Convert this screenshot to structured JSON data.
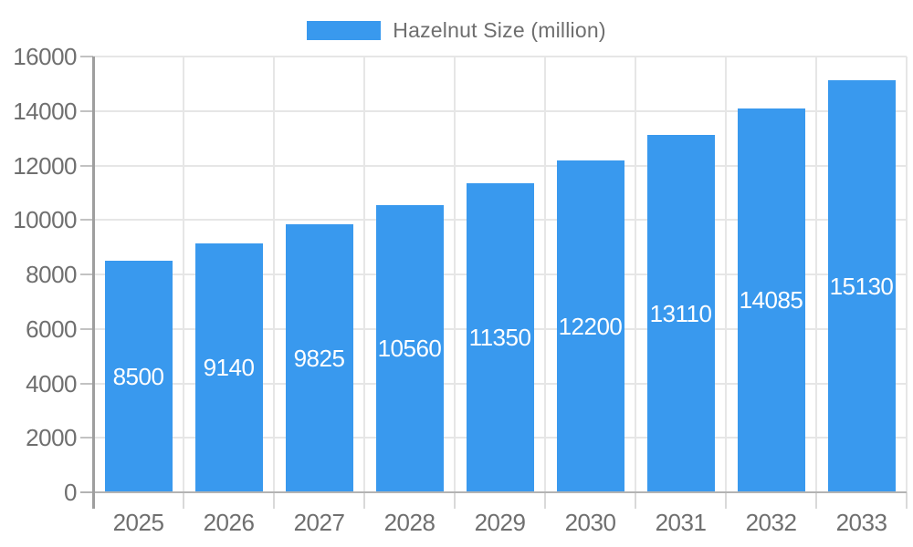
{
  "legend": {
    "label": "Hazelnut Size (million)"
  },
  "colors": {
    "bar": "#3999ee",
    "bar_label": "#ffffff",
    "axis_text": "#6f6f6f",
    "legend_text": "#6e6e6e",
    "axis_line": "#9e9e9e",
    "baseline": "#b3b3b3",
    "gridline": "#e6e6e6",
    "background": "#ffffff"
  },
  "chart_data": {
    "type": "bar",
    "title": "Hazelnut Size (million)",
    "xlabel": "",
    "ylabel": "",
    "categories": [
      "2025",
      "2026",
      "2027",
      "2028",
      "2029",
      "2030",
      "2031",
      "2032",
      "2033"
    ],
    "series": [
      {
        "name": "Hazelnut Size (million)",
        "values": [
          8500,
          9140,
          9825,
          10560,
          11350,
          12200,
          13110,
          14085,
          15130
        ]
      }
    ],
    "data_labels_shown": true,
    "data_labels": [
      "8500",
      "9140",
      "9825",
      "10560",
      "11350",
      "12200",
      "13110",
      "14085",
      "15130"
    ],
    "ylim": [
      0,
      16000
    ],
    "ytick_step": 2000,
    "y_tick_labels": [
      "0",
      "2000",
      "4000",
      "6000",
      "8000",
      "10000",
      "12000",
      "14000",
      "16000"
    ],
    "grid": true,
    "legend_position": "top-center"
  }
}
